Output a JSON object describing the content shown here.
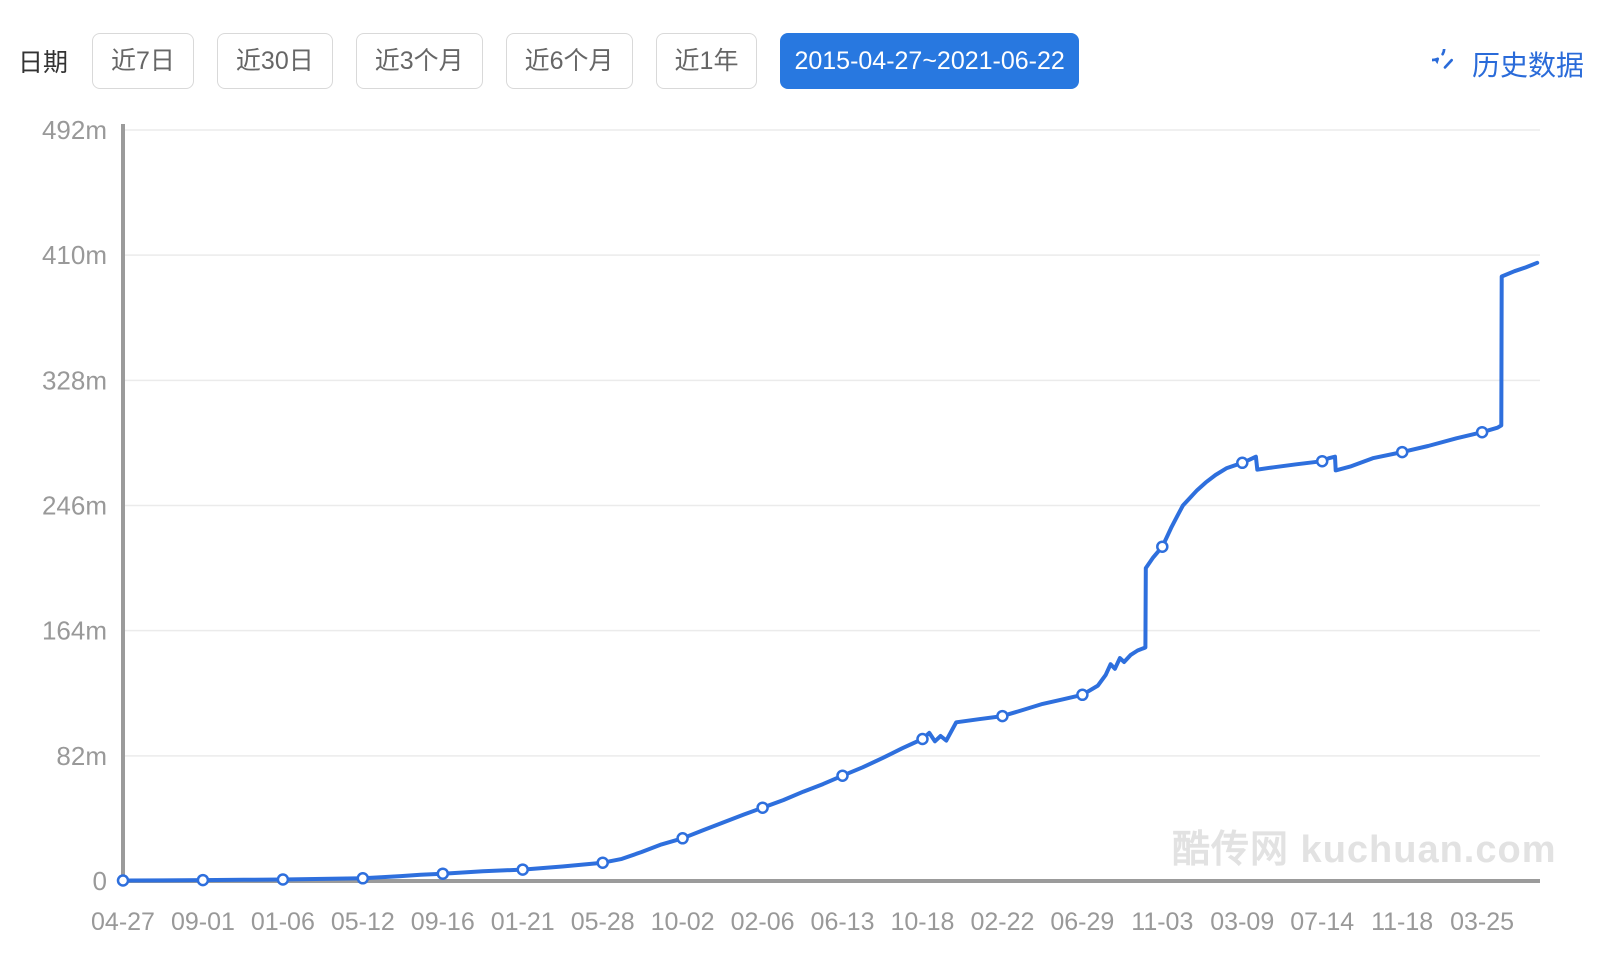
{
  "toolbar": {
    "date_label": "日期",
    "filters": [
      {
        "label": "近7日"
      },
      {
        "label": "近30日"
      },
      {
        "label": "近3个月"
      },
      {
        "label": "近6个月"
      },
      {
        "label": "近1年"
      }
    ],
    "active_range": "2015-04-27~2021-06-22",
    "history_link": {
      "icon": "history-clock-icon",
      "label": "历史数据"
    }
  },
  "watermark": "酷传网 kuchuan.com",
  "colors": {
    "accent_blue": "#2878e0",
    "line_blue": "#2e6fdd",
    "link_blue": "#2a6bd9",
    "axis_gray": "#9b9b9b",
    "grid_gray": "#ebebeb",
    "tick_label_gray": "#999999"
  },
  "chart_data": {
    "type": "line",
    "title": "",
    "legend": false,
    "grid": true,
    "y_axis": {
      "unit": "m",
      "max": 492,
      "tick_labels": [
        "492m",
        "410m",
        "328m",
        "246m",
        "164m",
        "82m",
        "0"
      ],
      "tick_values": [
        492,
        410,
        328,
        246,
        164,
        82,
        0
      ]
    },
    "x_axis": {
      "range_label": "2015-04-27~2021-06-22",
      "tick_step_frac": 0.05642,
      "tick_labels": [
        "04-27",
        "09-01",
        "01-06",
        "05-12",
        "09-16",
        "01-21",
        "05-28",
        "10-02",
        "02-06",
        "06-13",
        "10-18",
        "02-22",
        "06-29",
        "11-03",
        "03-09",
        "07-14",
        "11-18",
        "03-25"
      ]
    },
    "series": [
      {
        "color": "#2e6fdd",
        "marker": "open-circle",
        "tick_markers": [
          [
            0.0,
            0.3
          ],
          [
            0.05642,
            0.6
          ],
          [
            0.11284,
            1.0
          ],
          [
            0.16926,
            1.8
          ],
          [
            0.22568,
            4.8
          ],
          [
            0.2821,
            7.5
          ],
          [
            0.33852,
            12.0
          ],
          [
            0.39494,
            28.0
          ],
          [
            0.45136,
            48.0
          ],
          [
            0.50778,
            69.0
          ],
          [
            0.5642,
            93.0
          ],
          [
            0.62062,
            108.0
          ],
          [
            0.67704,
            122.0
          ],
          [
            0.73346,
            219.0
          ],
          [
            0.78988,
            274.0
          ],
          [
            0.8463,
            275.0
          ],
          [
            0.90272,
            281.0
          ],
          [
            0.95914,
            294.0
          ]
        ],
        "points": [
          [
            0.0,
            0.3
          ],
          [
            0.028,
            0.4
          ],
          [
            0.05642,
            0.6
          ],
          [
            0.085,
            0.8
          ],
          [
            0.11284,
            1.0
          ],
          [
            0.141,
            1.4
          ],
          [
            0.16926,
            1.8
          ],
          [
            0.182,
            2.4
          ],
          [
            0.196,
            3.2
          ],
          [
            0.21,
            4.1
          ],
          [
            0.22568,
            4.8
          ],
          [
            0.254,
            6.4
          ],
          [
            0.2821,
            7.5
          ],
          [
            0.31,
            9.5
          ],
          [
            0.33852,
            12.0
          ],
          [
            0.352,
            14.5
          ],
          [
            0.366,
            19.0
          ],
          [
            0.38,
            24.0
          ],
          [
            0.39494,
            28.0
          ],
          [
            0.41,
            33.5
          ],
          [
            0.424,
            38.5
          ],
          [
            0.438,
            43.5
          ],
          [
            0.45136,
            48.0
          ],
          [
            0.466,
            53.0
          ],
          [
            0.48,
            58.5
          ],
          [
            0.494,
            63.5
          ],
          [
            0.50778,
            69.0
          ],
          [
            0.522,
            74.5
          ],
          [
            0.536,
            80.5
          ],
          [
            0.55,
            87.0
          ],
          [
            0.5642,
            93.0
          ],
          [
            0.569,
            97.0
          ],
          [
            0.573,
            91.5
          ],
          [
            0.577,
            95.0
          ],
          [
            0.581,
            92.0
          ],
          [
            0.588,
            104.0
          ],
          [
            0.604,
            106.0
          ],
          [
            0.62062,
            108.0
          ],
          [
            0.635,
            112.0
          ],
          [
            0.649,
            116.0
          ],
          [
            0.663,
            119.0
          ],
          [
            0.67704,
            122.0
          ],
          [
            0.688,
            128.0
          ],
          [
            0.6935,
            135.0
          ],
          [
            0.697,
            142.0
          ],
          [
            0.7,
            139.0
          ],
          [
            0.7035,
            146.0
          ],
          [
            0.7065,
            143.5
          ],
          [
            0.711,
            148.0
          ],
          [
            0.716,
            151.0
          ],
          [
            0.7215,
            153.0
          ],
          [
            0.7218,
            205.0
          ],
          [
            0.727,
            212.0
          ],
          [
            0.73346,
            219.0
          ],
          [
            0.7365,
            225.0
          ],
          [
            0.74,
            232.0
          ],
          [
            0.744,
            239.0
          ],
          [
            0.748,
            246.0
          ],
          [
            0.752,
            250.0
          ],
          [
            0.758,
            256.0
          ],
          [
            0.764,
            261.0
          ],
          [
            0.771,
            266.0
          ],
          [
            0.779,
            270.5
          ],
          [
            0.78988,
            274.0
          ],
          [
            0.795,
            276.0
          ],
          [
            0.7995,
            278.0
          ],
          [
            0.8005,
            269.5
          ],
          [
            0.812,
            271.0
          ],
          [
            0.828,
            273.0
          ],
          [
            0.8463,
            275.0
          ],
          [
            0.851,
            277.0
          ],
          [
            0.8553,
            278.0
          ],
          [
            0.8558,
            269.0
          ],
          [
            0.866,
            271.5
          ],
          [
            0.882,
            277.0
          ],
          [
            0.90272,
            281.0
          ],
          [
            0.921,
            285.0
          ],
          [
            0.941,
            290.0
          ],
          [
            0.95914,
            294.0
          ],
          [
            0.97,
            297.0
          ],
          [
            0.9727,
            298.5
          ],
          [
            0.973,
            396.0
          ],
          [
            0.982,
            399.5
          ],
          [
            0.99,
            402.0
          ],
          [
            0.998,
            405.0
          ]
        ]
      }
    ]
  }
}
